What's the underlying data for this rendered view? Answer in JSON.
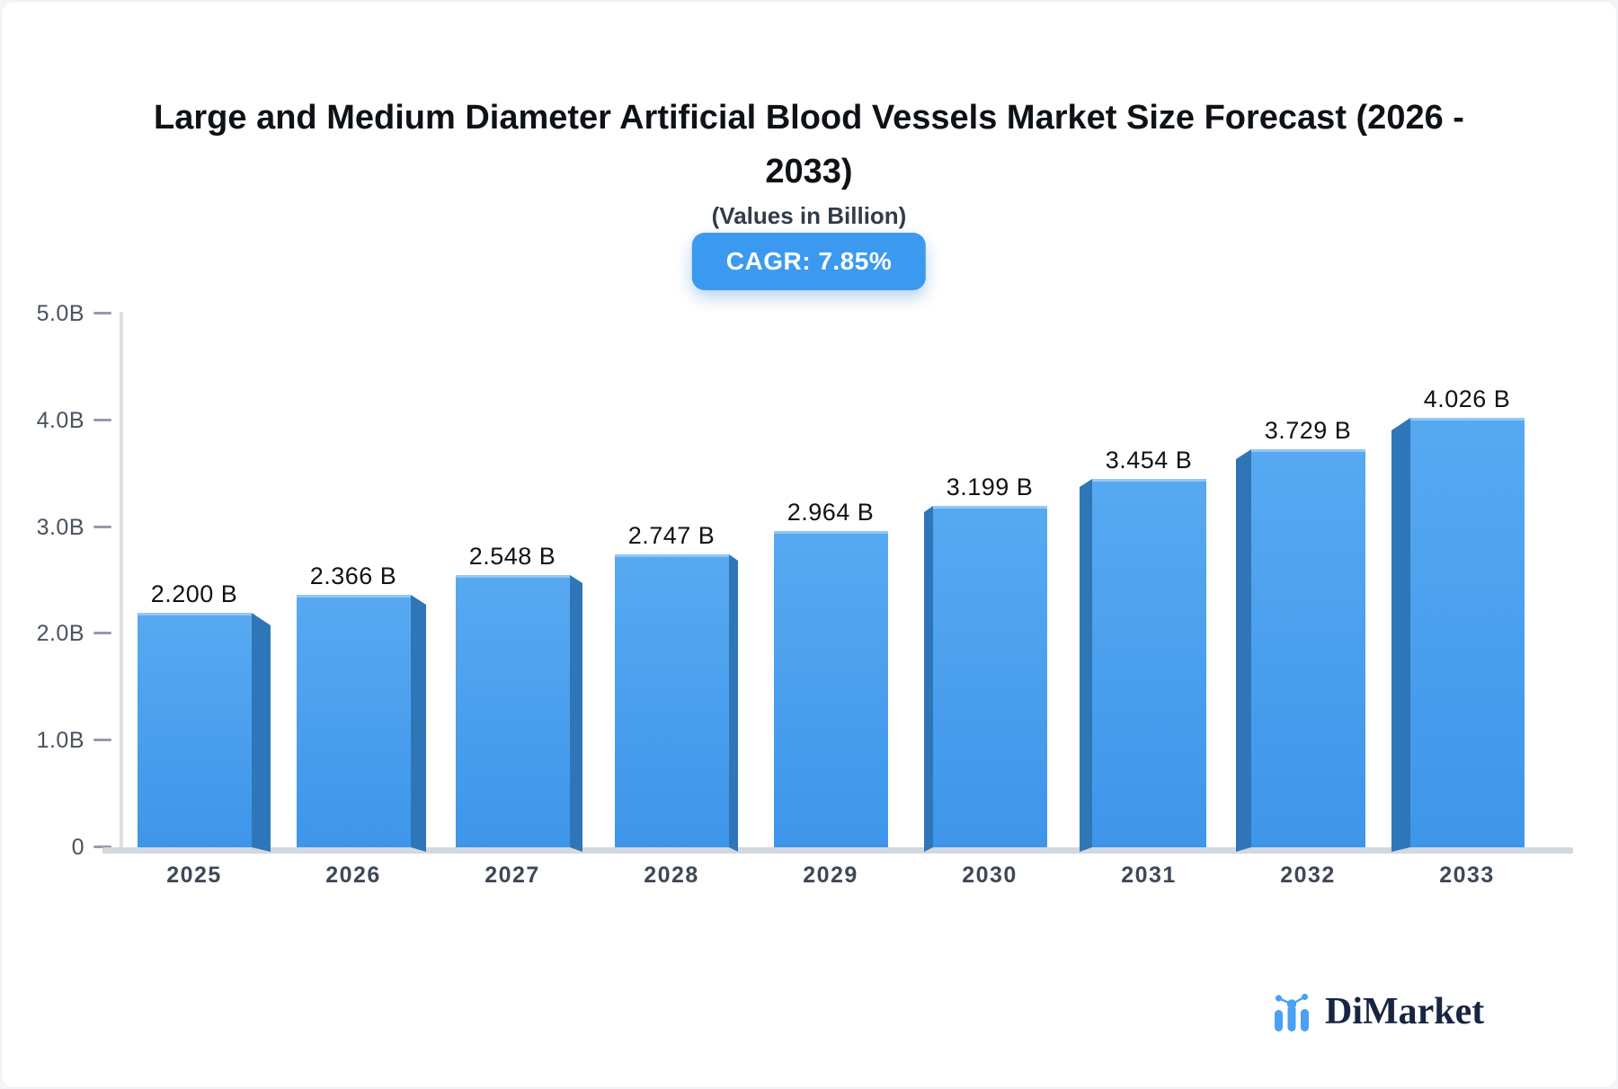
{
  "chart_data": {
    "type": "bar",
    "title": "Large and Medium Diameter Artificial Blood Vessels Market Size Forecast (2026 - 2033)",
    "title_line1": "Large and Medium Diameter Artificial Blood Vessels Market Size Forecast (2026 -",
    "title_line2": "2033)",
    "subtitle": "(Values in Billion)",
    "annotation": "CAGR: 7.85%",
    "categories": [
      "2025",
      "2026",
      "2027",
      "2028",
      "2029",
      "2030",
      "2031",
      "2032",
      "2033"
    ],
    "values": [
      2.2,
      2.366,
      2.548,
      2.747,
      2.964,
      3.199,
      3.454,
      3.729,
      4.026
    ],
    "value_labels": [
      "2.200 B",
      "2.366 B",
      "2.548 B",
      "2.747 B",
      "2.964 B",
      "3.199 B",
      "3.454 B",
      "3.729 B",
      "4.026 B"
    ],
    "xlabel": "",
    "ylabel": "",
    "ylim": [
      0,
      5
    ],
    "ytick_labels": [
      "5.0B",
      "4.0B",
      "3.0B",
      "2.0B",
      "1.0B",
      "0"
    ],
    "grid": false,
    "legend": false,
    "effect": "3d-columns",
    "style": {
      "bar_front_top": "#57a9f1",
      "bar_front_bottom": "#3e96ea",
      "bar_side": "#2e76b8",
      "bar_top_highlight": "rgba(255,255,255,0.35)",
      "badge_bg": "#3b9af0",
      "axis_color": "#dcdfe4",
      "floor_color": "#d3d8de",
      "tick_color": "#949ca8",
      "axis_label_color": "#49525f",
      "value_label_color": "#101214"
    }
  },
  "footer": {
    "logo_text": "DiMarket",
    "logo_icon": "bar-line-chart-icon",
    "logo_text_color": "#182540",
    "logo_icon_color": "#4aa0f2"
  }
}
